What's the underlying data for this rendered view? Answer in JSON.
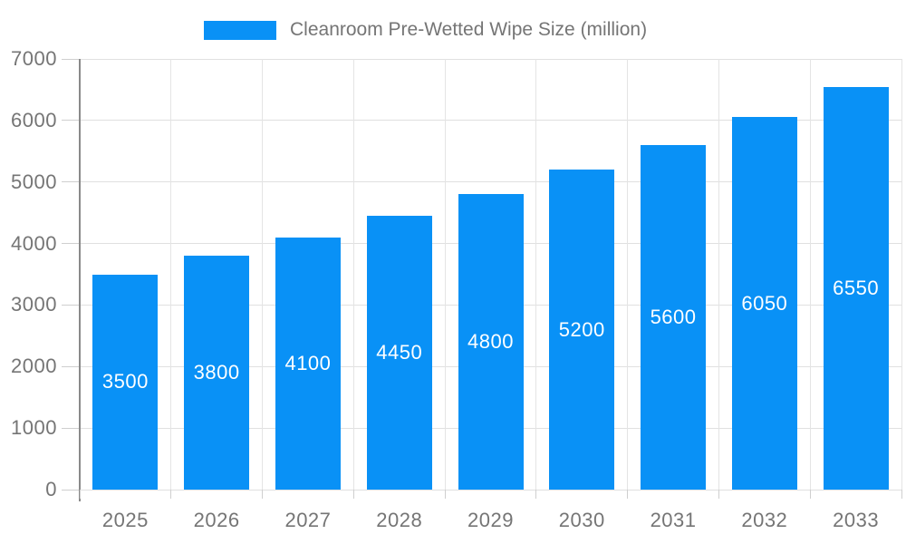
{
  "chart_data": {
    "type": "bar",
    "title": "Cleanroom Pre-Wetted Wipe Size (million)",
    "series_name": "Cleanroom Pre-Wetted Wipe Size (million)",
    "categories": [
      "2025",
      "2026",
      "2027",
      "2028",
      "2029",
      "2030",
      "2031",
      "2032",
      "2033"
    ],
    "values": [
      3500,
      3800,
      4100,
      4450,
      4800,
      5200,
      5600,
      6050,
      6550
    ],
    "xlabel": "",
    "ylabel": "",
    "ylim": [
      0,
      7000
    ],
    "yticks": [
      0,
      1000,
      2000,
      3000,
      4000,
      5000,
      6000,
      7000
    ],
    "grid": true,
    "legend_position": "top",
    "bar_labels_visible": true,
    "colors": {
      "bar": "#0991F6",
      "bar_label": "#FFFFFF",
      "axis_text": "#757575",
      "legend_text": "#757575",
      "gridline": "#E0E0E0",
      "gridline_vertical": "#E4E4E4",
      "axis_line": "#8A8A8A",
      "tick": "#CFCFCF",
      "background": "#FFFFFF"
    }
  }
}
